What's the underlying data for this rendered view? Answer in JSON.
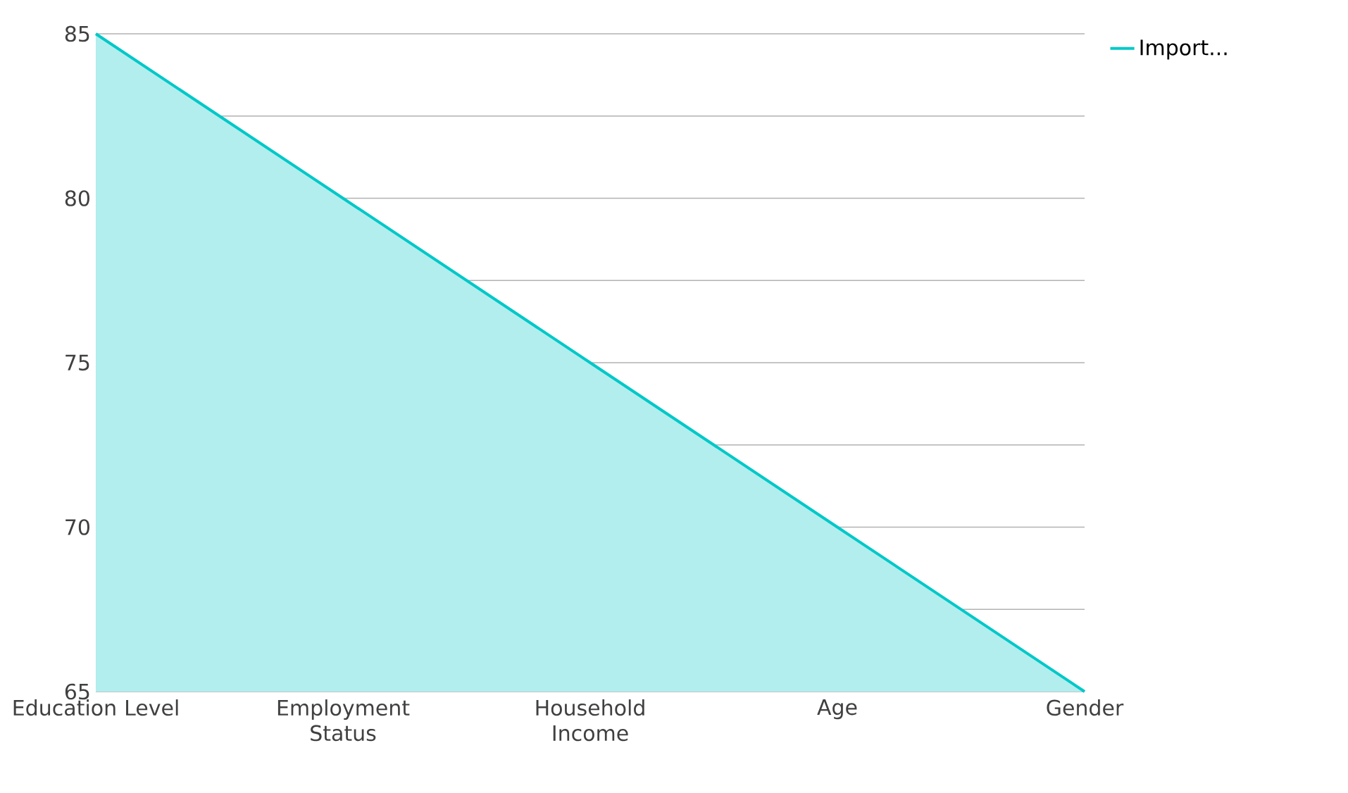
{
  "chart_data": {
    "type": "area",
    "categories": [
      "Education Level",
      "Employment Status",
      "Household Income",
      "Age",
      "Gender"
    ],
    "series": [
      {
        "name": "Import...",
        "color": "#00c8c8",
        "values": [
          85,
          80,
          75,
          70,
          65
        ]
      }
    ],
    "ylim": [
      65,
      85
    ],
    "yticks": [
      65,
      {
        "value": 67.5,
        "label": null
      },
      70,
      {
        "value": 72.5,
        "label": null
      },
      75,
      {
        "value": 77.5,
        "label": null
      },
      80,
      {
        "value": 82.5,
        "label": null
      },
      85
    ],
    "grid": "y",
    "legend": "top right"
  }
}
